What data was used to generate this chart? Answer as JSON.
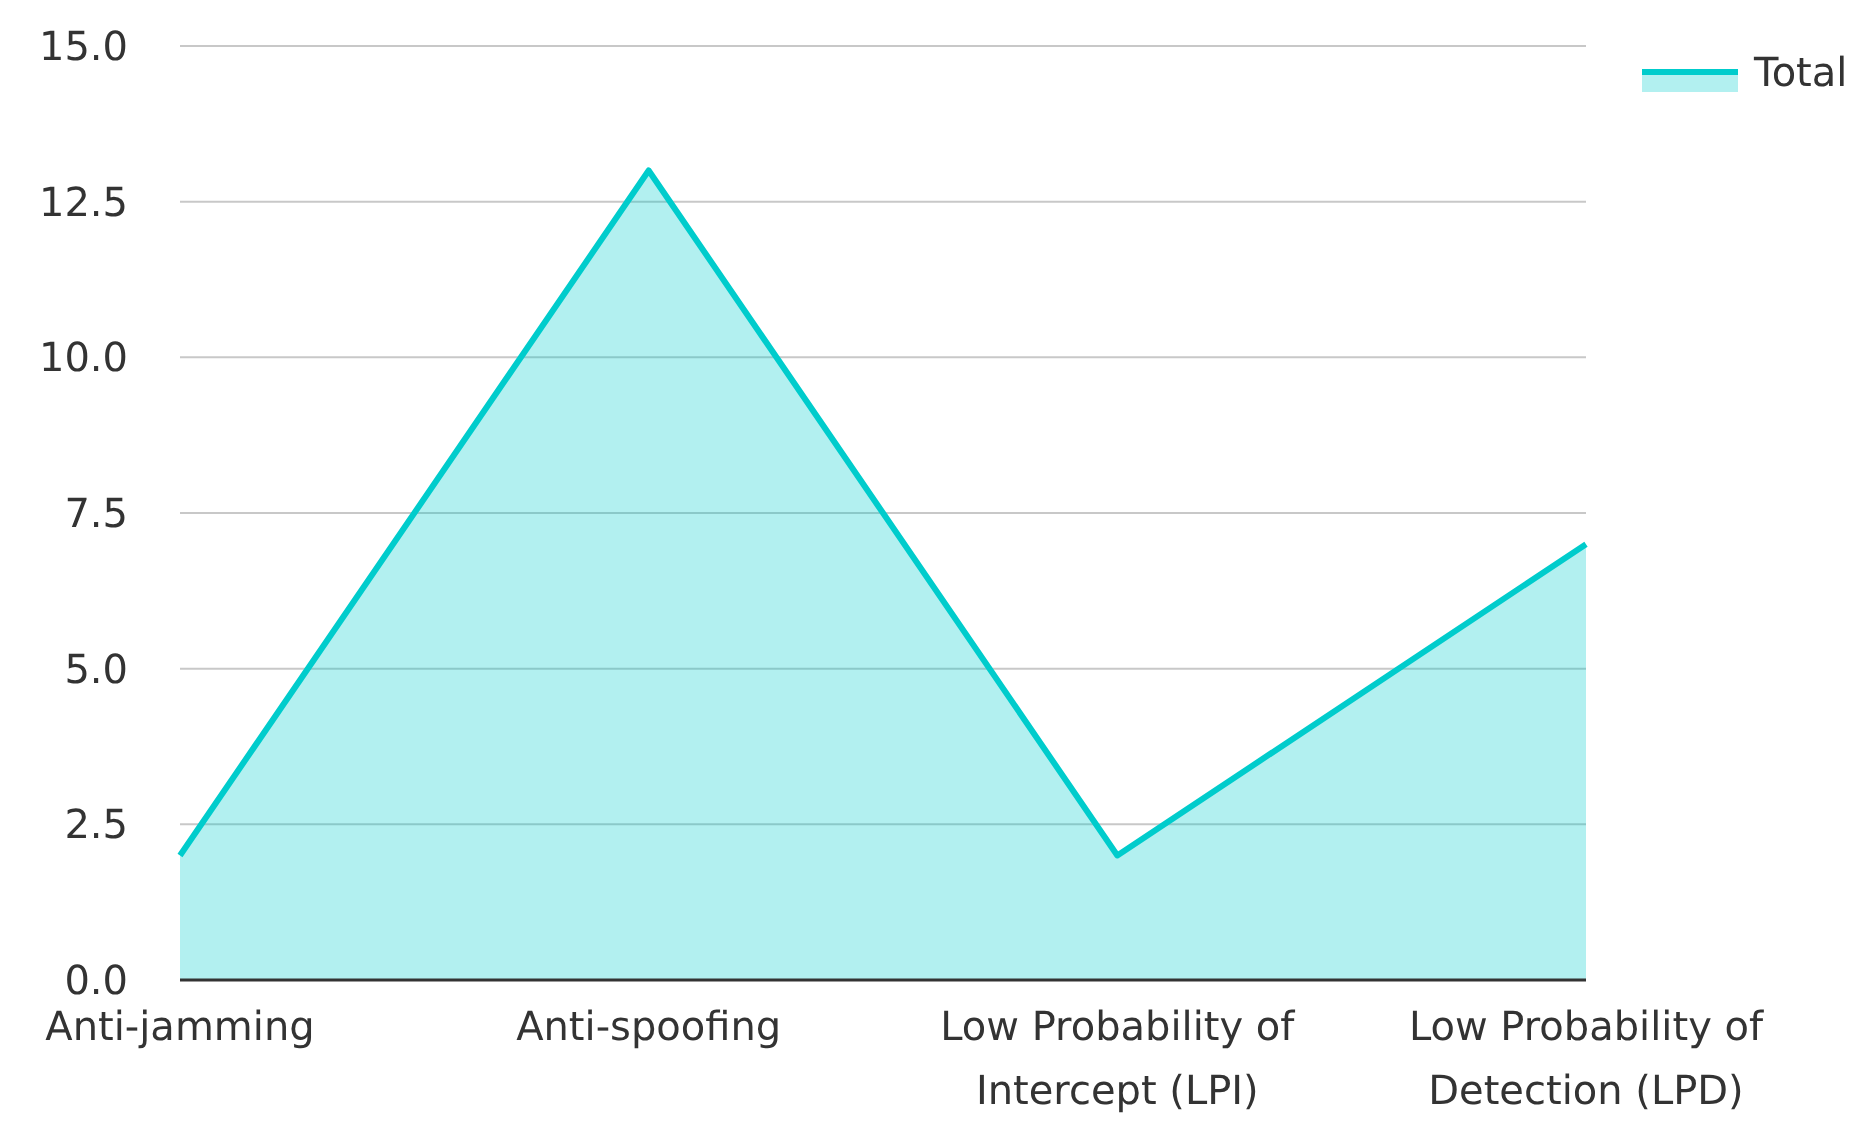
{
  "chart_data": {
    "type": "area",
    "categories": [
      "Anti-jamming",
      "Anti-spoofing",
      "Low Probability of Intercept (LPI)",
      "Low Probability of Detection (LPD)"
    ],
    "series": [
      {
        "name": "Total",
        "color": "#00cccc",
        "values": [
          2,
          13,
          2,
          7
        ]
      }
    ],
    "ylim": [
      0,
      15
    ],
    "yticks": [
      {
        "value": 0,
        "label": "0.0"
      },
      {
        "value": 2.5,
        "label": "2.5"
      },
      {
        "value": 5,
        "label": "5.0"
      },
      {
        "value": 7.5,
        "label": "7.5"
      },
      {
        "value": 10,
        "label": "10.0"
      },
      {
        "value": 12.5,
        "label": "12.5"
      },
      {
        "value": 15,
        "label": "15.0"
      }
    ],
    "grid": "y",
    "legend": "top right"
  }
}
